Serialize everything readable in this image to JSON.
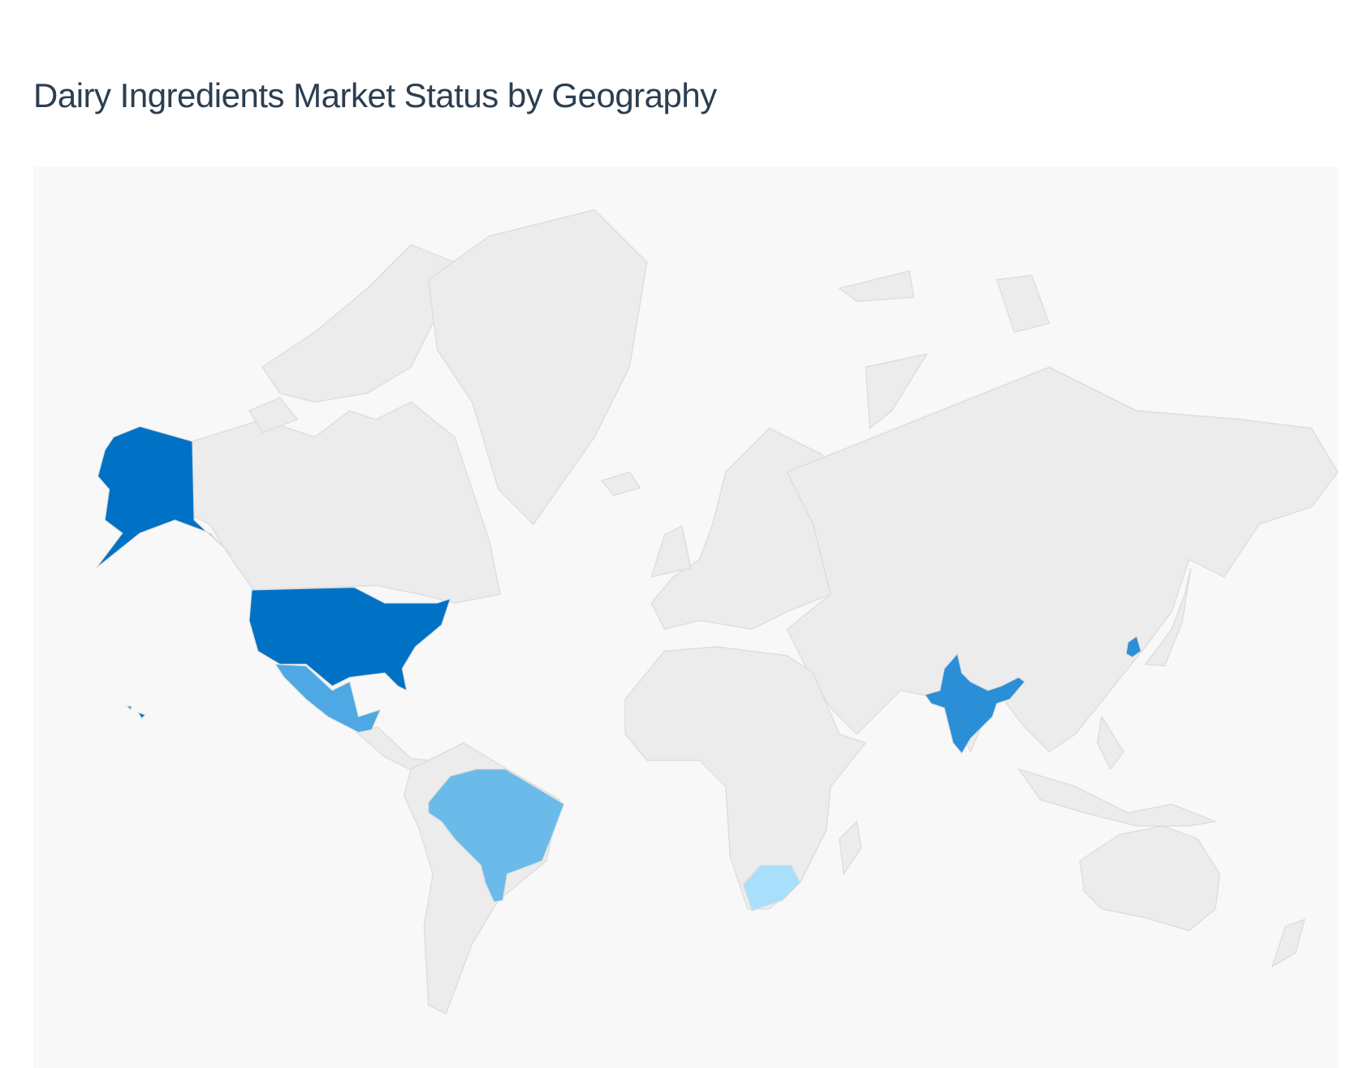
{
  "title": "Dairy Ingredients Market Status by Geography",
  "map": {
    "type": "choropleth world map",
    "base_color": "#ececec",
    "background_color": "#f8f8f8",
    "highlighted_countries": [
      {
        "name": "United States",
        "color": "#0072c6"
      },
      {
        "name": "India",
        "color": "#2b8fd8"
      },
      {
        "name": "South Korea",
        "color": "#2b8fd8"
      },
      {
        "name": "Mexico",
        "color": "#4ea8e4"
      },
      {
        "name": "Brazil",
        "color": "#6bbbea"
      },
      {
        "name": "South Africa",
        "color": "#a8e0fb"
      }
    ]
  }
}
